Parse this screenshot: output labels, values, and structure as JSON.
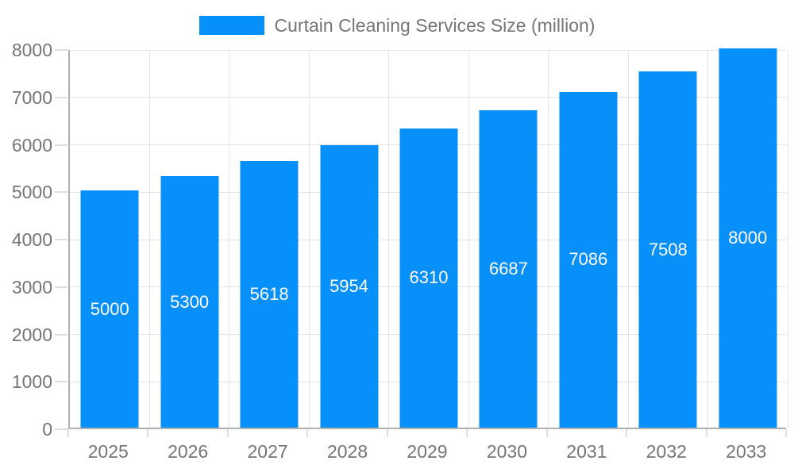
{
  "chart_data": {
    "type": "bar",
    "title": "Curtain Cleaning Services Size (million)",
    "categories": [
      "2025",
      "2026",
      "2027",
      "2028",
      "2029",
      "2030",
      "2031",
      "2032",
      "2033"
    ],
    "series": [
      {
        "name": "Curtain Cleaning Services Size (million)",
        "values": [
          5000,
          5300,
          5618,
          5954,
          6310,
          6687,
          7086,
          7508,
          8000
        ]
      }
    ],
    "values": [
      5000,
      5300,
      5618,
      5954,
      6310,
      6687,
      7086,
      7508,
      8000
    ],
    "xlabel": "",
    "ylabel": "",
    "ylim": [
      0,
      8000
    ],
    "yticks": [
      0,
      1000,
      2000,
      3000,
      4000,
      5000,
      6000,
      7000,
      8000
    ],
    "grid": "horizontal-and-vertical",
    "legend_position": "top-center",
    "bar_label_position": "inside-center"
  },
  "legend": {
    "label": "Curtain Cleaning Services Size (million)"
  },
  "colors": {
    "bar": "#0790f9",
    "bar_value_text": "#ffffff",
    "axis_text": "#757575",
    "gridline": "#e4e4e4",
    "axis_line": "#b0b0b0",
    "tick": "#dedede",
    "background": "#ffffff"
  }
}
